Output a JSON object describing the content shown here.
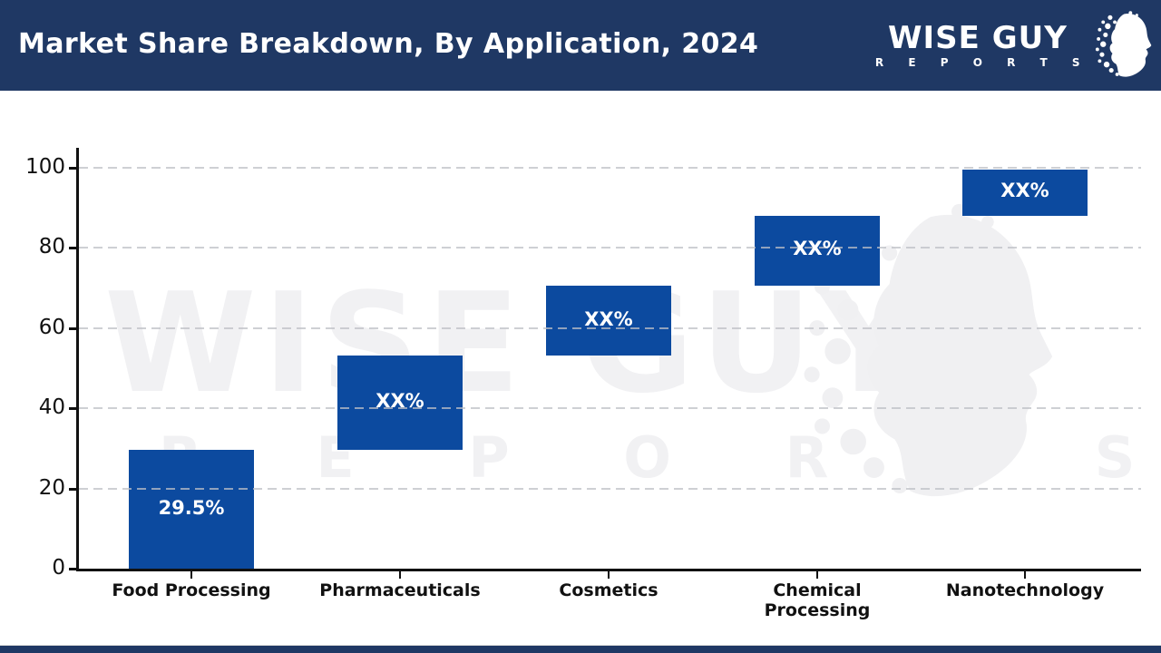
{
  "header": {
    "title": "Market Share Breakdown, By Application, 2024",
    "logo": {
      "line1": "WISE GUY",
      "line2": "R E P O R T S"
    }
  },
  "watermark": {
    "line1": "WISE GUY",
    "line2": "R E P O R T S"
  },
  "colors": {
    "header_bg": "#1f3864",
    "footer_bg": "#1f3864",
    "bar_fill": "#0c4a9f",
    "bar_label_text": "#ffffff",
    "axis": "#111111",
    "gridline": "#d9d9d9",
    "watermark_text": "#f1f1f3",
    "title_text": "#ffffff",
    "background": "#ffffff"
  },
  "chart_data": {
    "type": "bar",
    "subtype": "floating-segment-waterfall",
    "title": "Market Share Breakdown, By Application, 2024",
    "xlabel": "",
    "ylabel": "",
    "categories": [
      "Food Processing",
      "Pharmaceuticals",
      "Cosmetics",
      "Chemical Processing",
      "Nanotechnology"
    ],
    "category_label_lines": [
      [
        "Food Processing"
      ],
      [
        "Pharmaceuticals"
      ],
      [
        "Cosmetics"
      ],
      [
        "Chemical",
        "Processing"
      ],
      [
        "Nanotechnology"
      ]
    ],
    "segments": [
      {
        "category": "Food Processing",
        "start": 0,
        "end": 29.5,
        "label": "29.5%"
      },
      {
        "category": "Pharmaceuticals",
        "start": 29.5,
        "end": 53,
        "label": "XX%"
      },
      {
        "category": "Cosmetics",
        "start": 53,
        "end": 70.5,
        "label": "XX%"
      },
      {
        "category": "Chemical Processing",
        "start": 70.5,
        "end": 88,
        "label": "XX%"
      },
      {
        "category": "Nanotechnology",
        "start": 88,
        "end": 99.5,
        "label": "XX%"
      }
    ],
    "yticks": [
      0,
      20,
      40,
      60,
      80,
      100
    ],
    "ylim": [
      0,
      105
    ],
    "grid": "horizontal-dashed",
    "grid_above_bars": true,
    "legend": "none",
    "watermark": "WISE GUY REPORTS"
  }
}
